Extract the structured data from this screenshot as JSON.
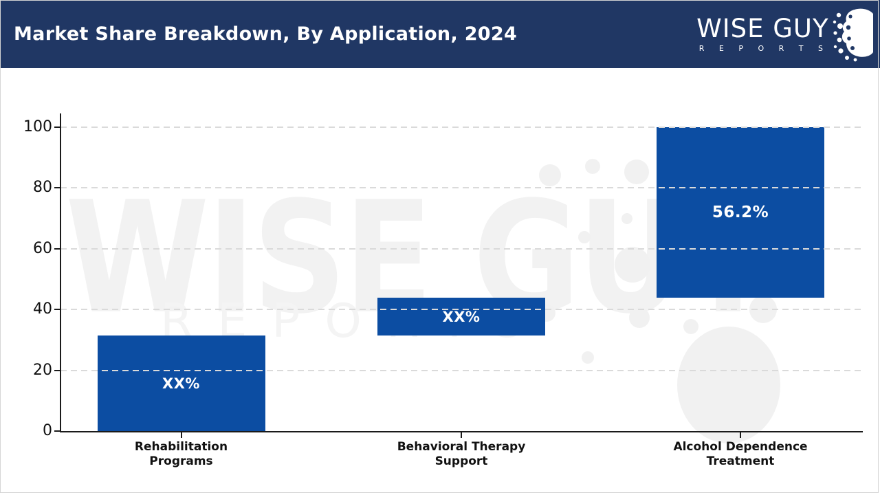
{
  "header": {
    "title": "Market Share Breakdown, By Application, 2024",
    "logo": {
      "line1": "WISE GUY",
      "line2": "R E P O R T S"
    }
  },
  "watermark": {
    "line1": "WISE GUY",
    "line2": "REPORTS"
  },
  "chart_data": {
    "type": "bar",
    "subtype": "stacked-waterfall",
    "title": "Market Share Breakdown, By Application, 2024",
    "xlabel": "",
    "ylabel": "",
    "categories": [
      "Rehabilitation\nPrograms",
      "Behavioral Therapy\nSupport",
      "Alcohol Dependence\nTreatment"
    ],
    "segments": [
      {
        "category": "Rehabilitation Programs",
        "start": 0,
        "end": 31.4,
        "value": 31.4,
        "label": "XX%"
      },
      {
        "category": "Behavioral Therapy Support",
        "start": 31.4,
        "end": 43.8,
        "value": 12.4,
        "label": "XX%"
      },
      {
        "category": "Alcohol Dependence Treatment",
        "start": 43.8,
        "end": 100,
        "value": 56.2,
        "label": "56.2%"
      }
    ],
    "yticks": [
      0,
      20,
      40,
      60,
      80,
      100
    ],
    "ylim": [
      0,
      104
    ],
    "grid": "horizontal-dashed",
    "legend": "none"
  },
  "colors": {
    "header_bg": "#203764",
    "bar": "#0c4da2",
    "bar_label": "#ffffff",
    "grid": "#dadada",
    "axis": "#1a1a1a",
    "panel_border": "#d5d5d5",
    "watermark": "#f2f2f2"
  }
}
